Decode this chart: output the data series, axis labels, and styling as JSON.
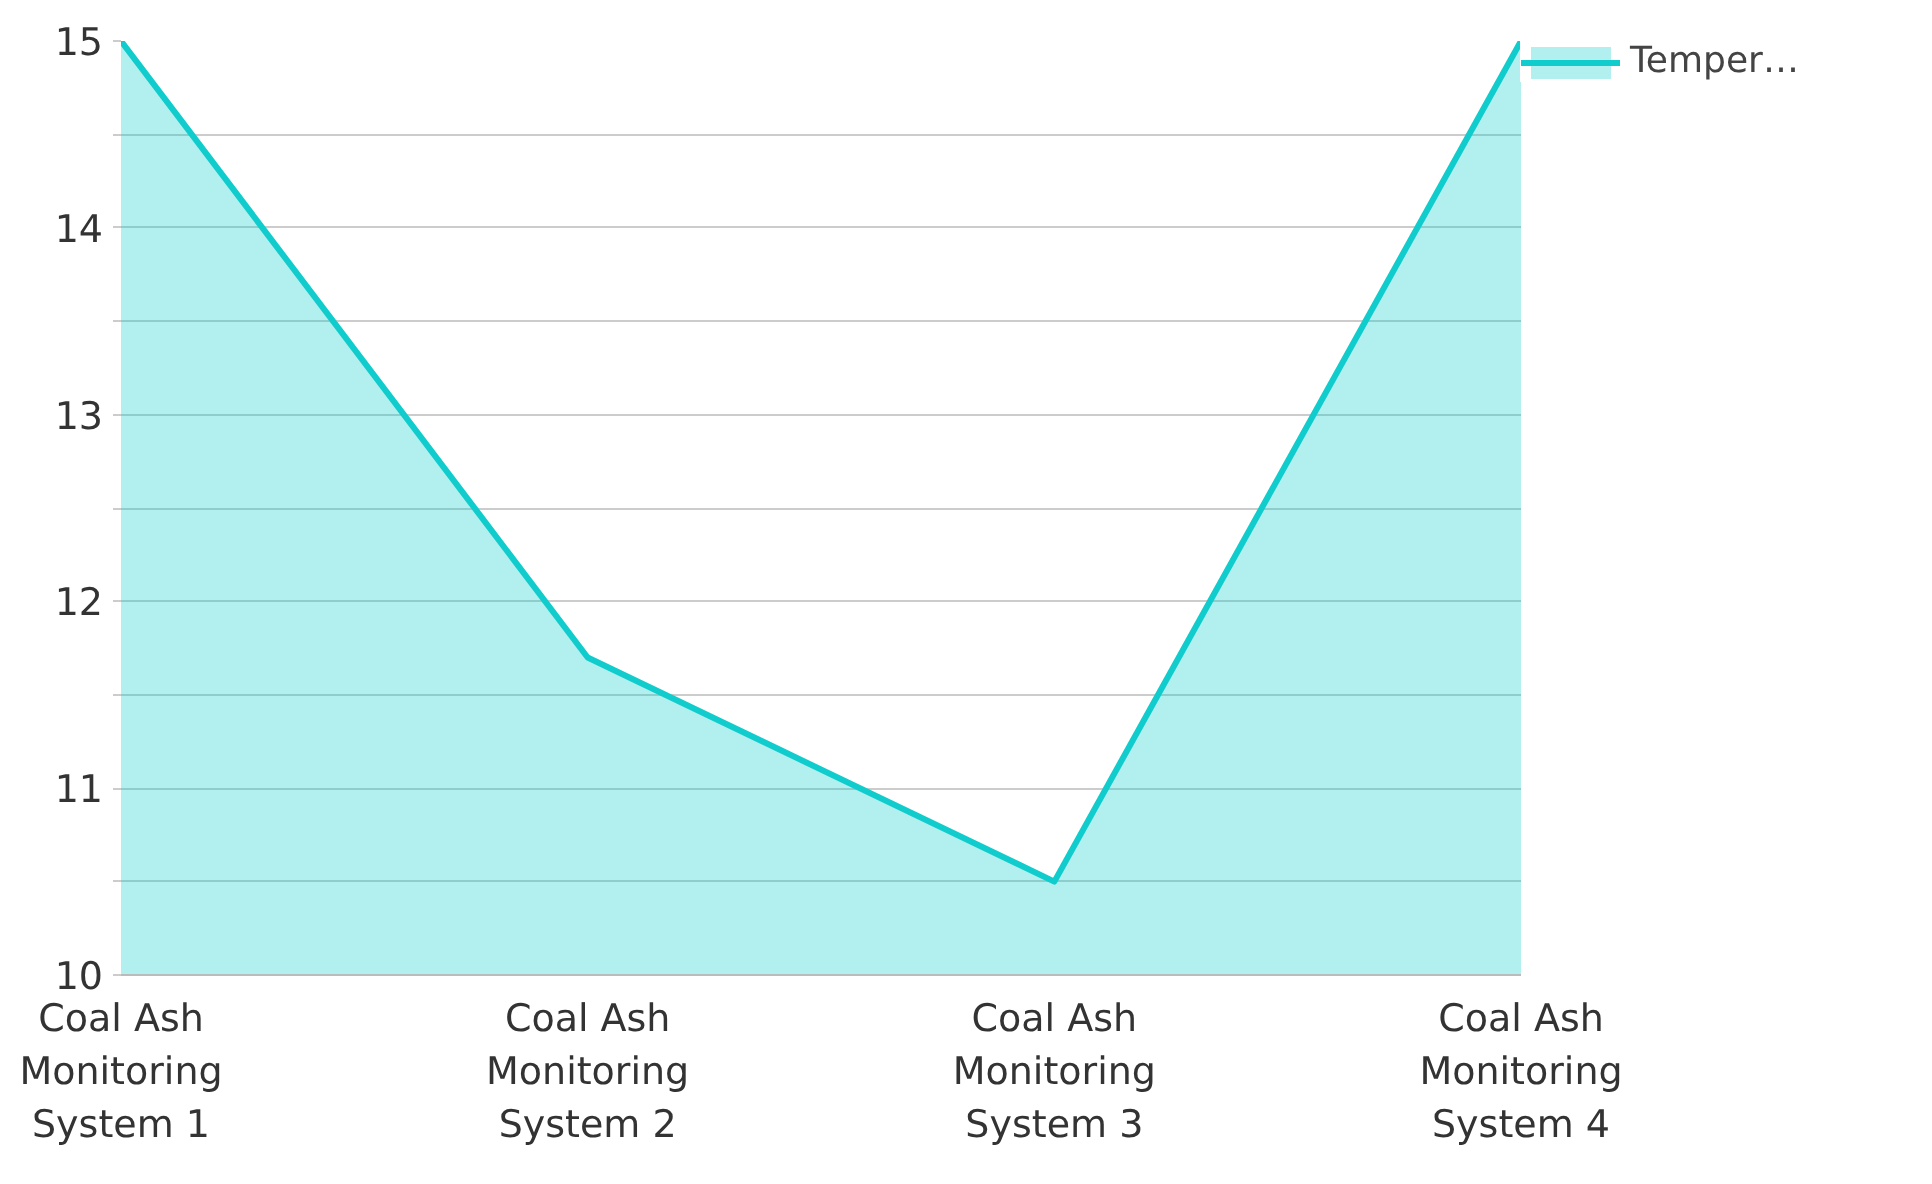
{
  "chart_data": {
    "type": "area",
    "categories": [
      "Coal Ash Monitoring System 1",
      "Coal Ash Monitoring System 2",
      "Coal Ash Monitoring System 3",
      "Coal Ash Monitoring System 4"
    ],
    "series": [
      {
        "name": "Temper…",
        "color": "#11cccc",
        "values": [
          15,
          11.7,
          10.5,
          15
        ]
      }
    ],
    "ylim": [
      10,
      15
    ],
    "yticks": [
      10,
      {
        "value": 10.5,
        "label": null
      },
      11,
      {
        "value": 11.5,
        "label": null
      },
      12,
      {
        "value": 12.5,
        "label": null
      },
      13,
      {
        "value": 13.5,
        "label": null
      },
      14,
      {
        "value": 14.5,
        "label": null
      },
      15
    ],
    "grid": "y",
    "legend": "top right",
    "marker": "none",
    "line_style": "solid"
  }
}
